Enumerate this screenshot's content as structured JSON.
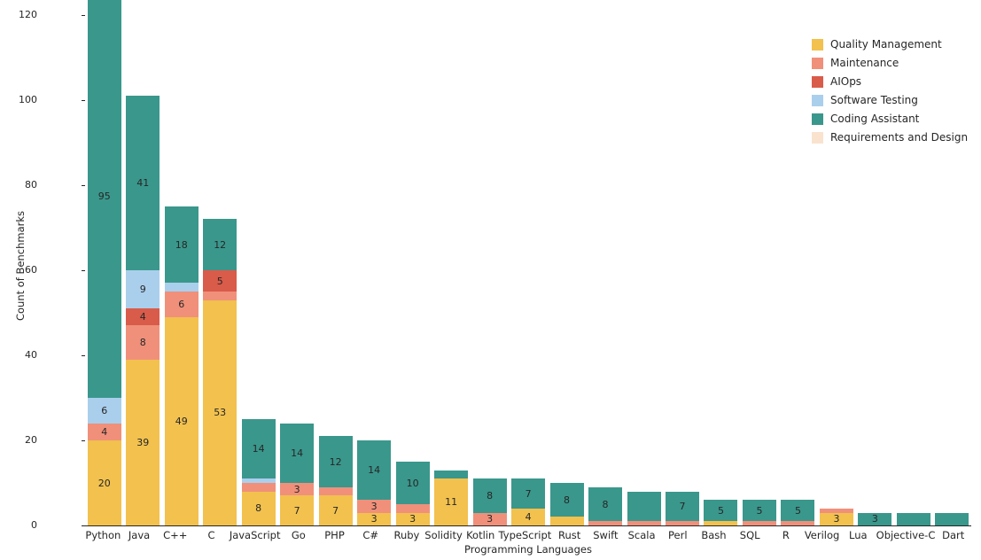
{
  "chart_data": {
    "type": "bar",
    "stacked": true,
    "title": "",
    "xlabel": "Programming Languages",
    "ylabel": "Count of Benchmarks",
    "ylim": [
      0,
      125
    ],
    "yticks": [
      0,
      20,
      40,
      60,
      80,
      100,
      120
    ],
    "grid": false,
    "legend_position": "top-right",
    "legend": [
      "Quality Management",
      "Maintenance",
      "AIOps",
      "Software Testing",
      "Coding Assistant",
      "Requirements and Design"
    ],
    "series_colors": {
      "Quality Management": "#F2C14E",
      "Maintenance": "#F0907A",
      "AIOps": "#D95B4A",
      "Software Testing": "#AACFEC",
      "Coding Assistant": "#3A978C",
      "Requirements and Design": "#FAE3CE"
    },
    "categories": [
      "Python",
      "Java",
      "C++",
      "C",
      "JavaScript",
      "Go",
      "PHP",
      "C#",
      "Ruby",
      "Solidity",
      "Kotlin",
      "TypeScript",
      "Rust",
      "Swift",
      "Scala",
      "Perl",
      "Bash",
      "SQL",
      "R",
      "Verilog",
      "Lua",
      "Objective-C",
      "Dart"
    ],
    "bars": [
      {
        "category": "Python",
        "segments": [
          {
            "series": "Quality Management",
            "value": 20,
            "labeled": true
          },
          {
            "series": "Maintenance",
            "value": 4,
            "labeled": true
          },
          {
            "series": "Software Testing",
            "value": 6,
            "labeled": true
          },
          {
            "series": "Coding Assistant",
            "value": 95,
            "labeled": true
          }
        ]
      },
      {
        "category": "Java",
        "segments": [
          {
            "series": "Quality Management",
            "value": 39,
            "labeled": true
          },
          {
            "series": "Maintenance",
            "value": 8,
            "labeled": true
          },
          {
            "series": "AIOps",
            "value": 4,
            "labeled": true
          },
          {
            "series": "Software Testing",
            "value": 9,
            "labeled": true
          },
          {
            "series": "Coding Assistant",
            "value": 41,
            "labeled": true
          }
        ]
      },
      {
        "category": "C++",
        "segments": [
          {
            "series": "Quality Management",
            "value": 49,
            "labeled": true
          },
          {
            "series": "Maintenance",
            "value": 6,
            "labeled": true
          },
          {
            "series": "Software Testing",
            "value": 2,
            "labeled": false
          },
          {
            "series": "Coding Assistant",
            "value": 18,
            "labeled": true
          }
        ]
      },
      {
        "category": "C",
        "segments": [
          {
            "series": "Quality Management",
            "value": 53,
            "labeled": true
          },
          {
            "series": "Maintenance",
            "value": 2,
            "labeled": false
          },
          {
            "series": "AIOps",
            "value": 5,
            "labeled": true
          },
          {
            "series": "Coding Assistant",
            "value": 12,
            "labeled": true
          }
        ]
      },
      {
        "category": "JavaScript",
        "segments": [
          {
            "series": "Quality Management",
            "value": 8,
            "labeled": true
          },
          {
            "series": "Maintenance",
            "value": 2,
            "labeled": false
          },
          {
            "series": "Software Testing",
            "value": 1,
            "labeled": false
          },
          {
            "series": "Coding Assistant",
            "value": 14,
            "labeled": true
          }
        ]
      },
      {
        "category": "Go",
        "segments": [
          {
            "series": "Quality Management",
            "value": 7,
            "labeled": true
          },
          {
            "series": "Maintenance",
            "value": 3,
            "labeled": true
          },
          {
            "series": "Coding Assistant",
            "value": 14,
            "labeled": true
          }
        ]
      },
      {
        "category": "PHP",
        "segments": [
          {
            "series": "Quality Management",
            "value": 7,
            "labeled": true
          },
          {
            "series": "Maintenance",
            "value": 2,
            "labeled": false
          },
          {
            "series": "Coding Assistant",
            "value": 12,
            "labeled": true
          }
        ]
      },
      {
        "category": "C#",
        "segments": [
          {
            "series": "Quality Management",
            "value": 3,
            "labeled": true
          },
          {
            "series": "Maintenance",
            "value": 3,
            "labeled": true
          },
          {
            "series": "Coding Assistant",
            "value": 14,
            "labeled": true
          }
        ]
      },
      {
        "category": "Ruby",
        "segments": [
          {
            "series": "Quality Management",
            "value": 3,
            "labeled": true
          },
          {
            "series": "Maintenance",
            "value": 2,
            "labeled": false
          },
          {
            "series": "Coding Assistant",
            "value": 10,
            "labeled": true
          }
        ]
      },
      {
        "category": "Solidity",
        "segments": [
          {
            "series": "Quality Management",
            "value": 11,
            "labeled": true
          },
          {
            "series": "Coding Assistant",
            "value": 2,
            "labeled": false
          }
        ]
      },
      {
        "category": "Kotlin",
        "segments": [
          {
            "series": "Maintenance",
            "value": 3,
            "labeled": true
          },
          {
            "series": "Coding Assistant",
            "value": 8,
            "labeled": true
          }
        ]
      },
      {
        "category": "TypeScript",
        "segments": [
          {
            "series": "Quality Management",
            "value": 4,
            "labeled": true
          },
          {
            "series": "Coding Assistant",
            "value": 7,
            "labeled": true
          }
        ]
      },
      {
        "category": "Rust",
        "segments": [
          {
            "series": "Quality Management",
            "value": 2,
            "labeled": false
          },
          {
            "series": "Coding Assistant",
            "value": 8,
            "labeled": true
          }
        ]
      },
      {
        "category": "Swift",
        "segments": [
          {
            "series": "Maintenance",
            "value": 1,
            "labeled": false
          },
          {
            "series": "Coding Assistant",
            "value": 8,
            "labeled": true
          }
        ]
      },
      {
        "category": "Scala",
        "segments": [
          {
            "series": "Maintenance",
            "value": 1,
            "labeled": false
          },
          {
            "series": "Coding Assistant",
            "value": 7,
            "labeled": false
          }
        ]
      },
      {
        "category": "Perl",
        "segments": [
          {
            "series": "Maintenance",
            "value": 1,
            "labeled": false
          },
          {
            "series": "Coding Assistant",
            "value": 7,
            "labeled": true
          }
        ]
      },
      {
        "category": "Bash",
        "segments": [
          {
            "series": "Quality Management",
            "value": 1,
            "labeled": false
          },
          {
            "series": "Coding Assistant",
            "value": 5,
            "labeled": true
          }
        ]
      },
      {
        "category": "SQL",
        "segments": [
          {
            "series": "Maintenance",
            "value": 1,
            "labeled": false
          },
          {
            "series": "Coding Assistant",
            "value": 5,
            "labeled": true
          }
        ]
      },
      {
        "category": "R",
        "segments": [
          {
            "series": "Maintenance",
            "value": 1,
            "labeled": false
          },
          {
            "series": "Coding Assistant",
            "value": 5,
            "labeled": true
          }
        ]
      },
      {
        "category": "Verilog",
        "segments": [
          {
            "series": "Quality Management",
            "value": 3,
            "labeled": true
          },
          {
            "series": "Maintenance",
            "value": 1,
            "labeled": false
          }
        ]
      },
      {
        "category": "Lua",
        "segments": [
          {
            "series": "Coding Assistant",
            "value": 3,
            "labeled": true
          }
        ]
      },
      {
        "category": "Objective-C",
        "segments": [
          {
            "series": "Coding Assistant",
            "value": 3,
            "labeled": false
          }
        ]
      },
      {
        "category": "Dart",
        "segments": [
          {
            "series": "Coding Assistant",
            "value": 3,
            "labeled": false
          }
        ]
      }
    ]
  }
}
